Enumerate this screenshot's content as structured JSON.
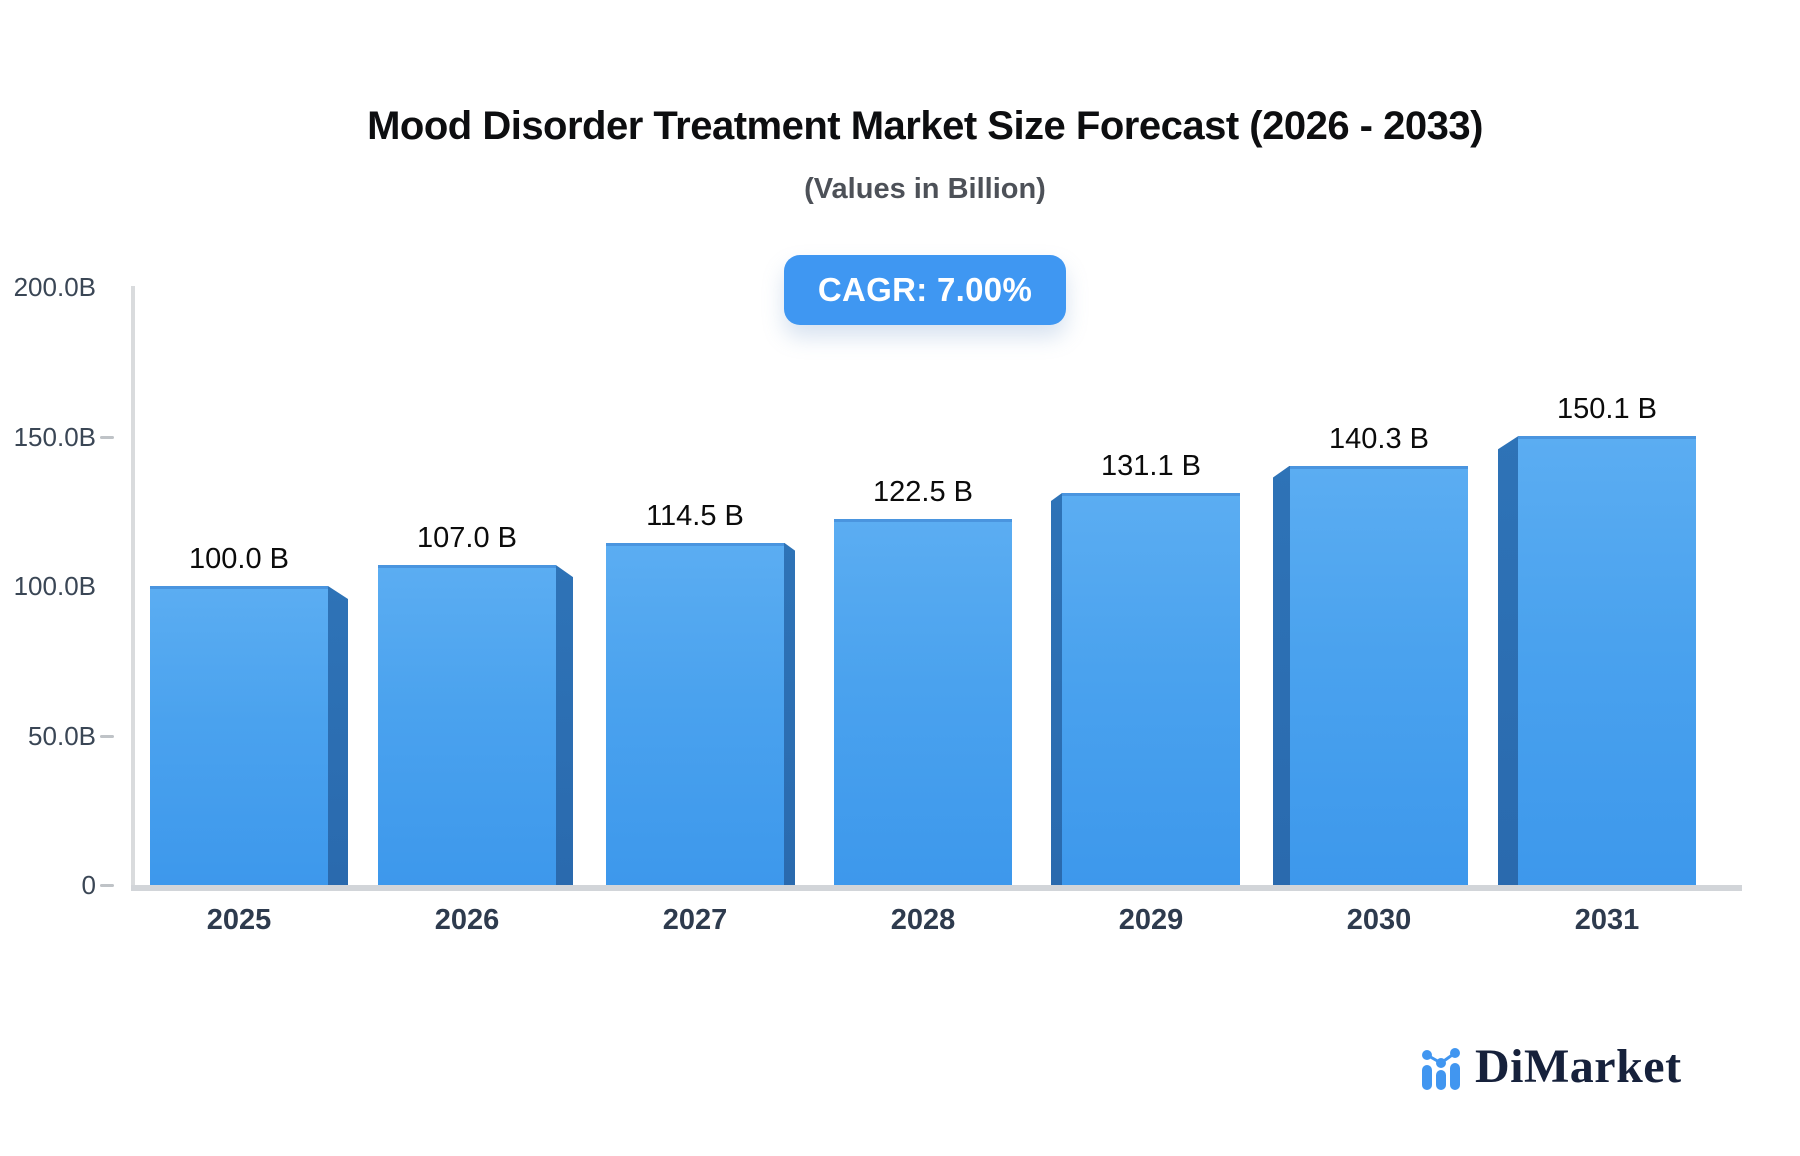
{
  "chart_data": {
    "type": "bar",
    "title": "Mood Disorder Treatment Market Size Forecast (2026 - 2033)",
    "subtitle": "(Values in Billion)",
    "unit": "Billion",
    "cagr": "7.00%",
    "categories": [
      "2025",
      "2026",
      "2027",
      "2028",
      "2029",
      "2030",
      "2031"
    ],
    "values": [
      100.0,
      107.0,
      114.5,
      122.5,
      131.1,
      140.3,
      150.1
    ],
    "value_labels": [
      "100.0 B",
      "107.0 B",
      "114.5 B",
      "122.5 B",
      "131.1 B",
      "140.3 B",
      "150.1 B"
    ],
    "y_axis": {
      "min": 0,
      "max": 200,
      "ticks": [
        {
          "value": 200,
          "label": "200.0B"
        },
        {
          "value": 150,
          "label": "150.0B"
        },
        {
          "value": 100,
          "label": "100.0B"
        },
        {
          "value": 50,
          "label": "50.0B"
        },
        {
          "value": 0,
          "label": "0"
        }
      ]
    },
    "grid": false,
    "legend": false,
    "bar_style": {
      "face_top": "#5badf2",
      "face_mid": "#4aa2ee",
      "face_bottom": "#3d98ec",
      "edge": "#4a95df",
      "side": "#2e73b7",
      "side_dark": "#2a6aae"
    },
    "axis_color": "#d9dbdd"
  },
  "cagr_badge": {
    "label": "CAGR: 7.00%",
    "background": "#3f97f2",
    "text_color": "#ffffff"
  },
  "logo": {
    "text": "DiMarket",
    "icon": "mini-bar-chart-logo-icon",
    "icon_color": "#4196f0",
    "text_color": "#16213b"
  }
}
